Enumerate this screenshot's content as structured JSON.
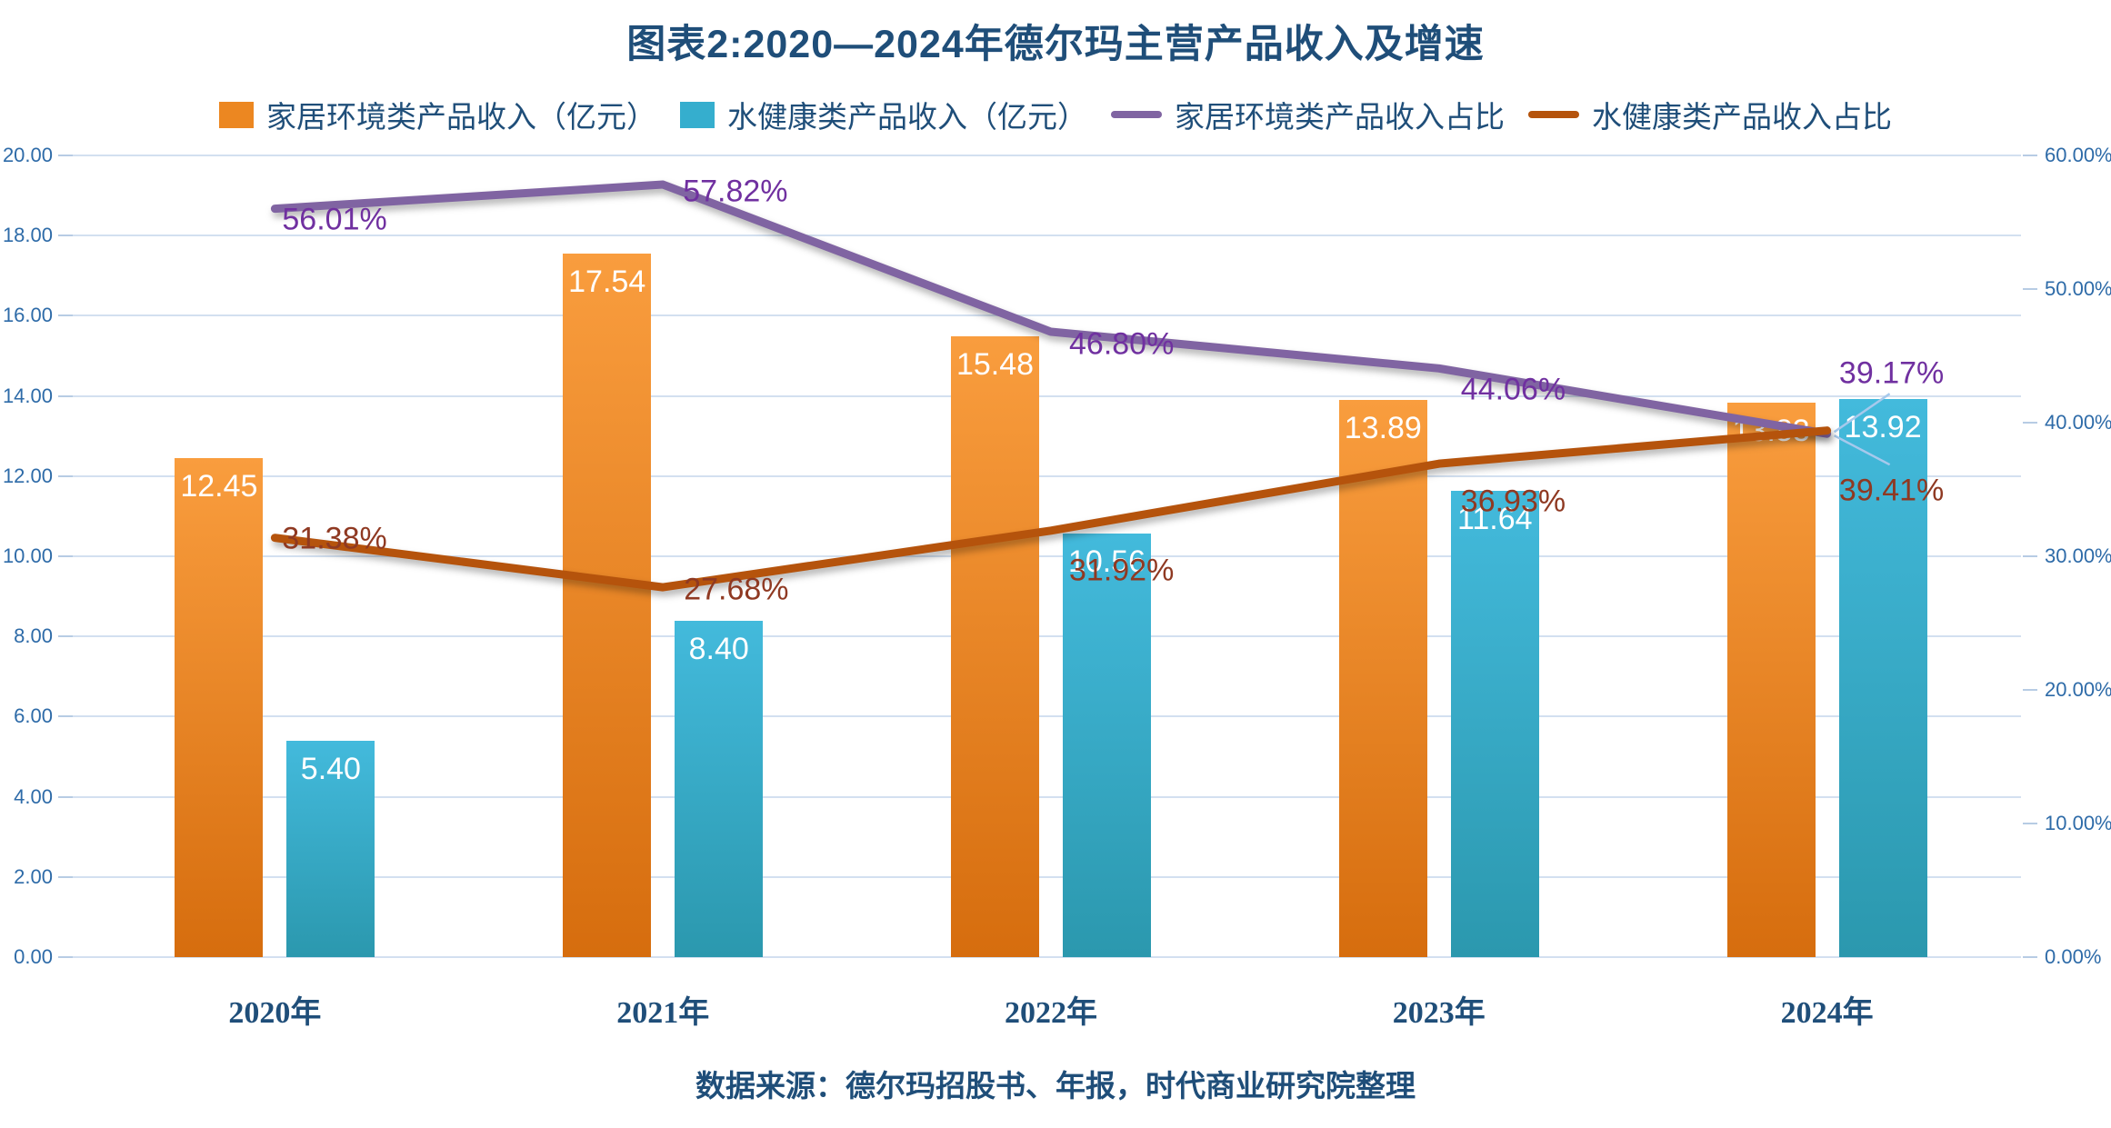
{
  "title": {
    "text": "图表2:2020—2024年德尔玛主营产品收入及增速"
  },
  "source": {
    "text": "数据来源：德尔玛招股书、年报，时代商业研究院整理"
  },
  "colors": {
    "title_text": "#1F4E79",
    "legend_text": "#1F4E79",
    "axis_tick_text": "#2E6BA8",
    "x_label_text": "#1F4E79",
    "source_text": "#1F4E79",
    "gridline": "#D3E0F0",
    "tick_mark": "#B7CCE4",
    "bar_value_text": "#FFFFFF",
    "leader_line": "#A6C9EC",
    "background": "#FFFFFF"
  },
  "legend": {
    "items": [
      {
        "label": "家居环境类产品收入（亿元）",
        "swatch": "square",
        "color": "#EC8721"
      },
      {
        "label": "水健康类产品收入（亿元）",
        "swatch": "square",
        "color": "#35AECE"
      },
      {
        "label": "家居环境类产品收入占比",
        "swatch": "line",
        "color": "#8064A2"
      },
      {
        "label": "水健康类产品收入占比",
        "swatch": "line",
        "color": "#B5530C"
      }
    ]
  },
  "chart_data": {
    "type": "bar+line combo",
    "categories": [
      "2020年",
      "2021年",
      "2022年",
      "2023年",
      "2024年"
    ],
    "series": [
      {
        "name": "家居环境类产品收入（亿元）",
        "type": "bar",
        "axis": "left",
        "color_top": "#F99D3E",
        "color_bottom": "#D66D0E",
        "values": [
          12.45,
          17.54,
          15.48,
          13.89,
          13.83
        ],
        "labels": [
          "12.45",
          "17.54",
          "15.48",
          "13.89",
          "13.83"
        ]
      },
      {
        "name": "水健康类产品收入（亿元）",
        "type": "bar",
        "axis": "left",
        "color_top": "#43BADC",
        "color_bottom": "#2B98AE",
        "values": [
          5.4,
          8.4,
          10.56,
          11.64,
          13.92
        ],
        "labels": [
          "5.40",
          "8.40",
          "10.56",
          "11.64",
          "13.92"
        ]
      },
      {
        "name": "家居环境类产品收入占比",
        "type": "line",
        "axis": "right",
        "color": "#8064A2",
        "label_color": "#7030A0",
        "values": [
          56.01,
          57.82,
          46.8,
          44.06,
          39.17
        ],
        "labels": [
          "56.01%",
          "57.82%",
          "46.80%",
          "44.06%",
          "39.17%"
        ]
      },
      {
        "name": "水健康类产品收入占比",
        "type": "line",
        "axis": "right",
        "color": "#B5530C",
        "label_color": "#8F3922",
        "values": [
          31.38,
          27.68,
          31.92,
          36.93,
          39.41
        ],
        "labels": [
          "31.38%",
          "27.68%",
          "31.92%",
          "36.93%",
          "39.41%"
        ]
      }
    ],
    "left_axis": {
      "min": 0,
      "max": 20,
      "step": 2,
      "tick_labels": [
        "0.00",
        "2.00",
        "4.00",
        "6.00",
        "8.00",
        "10.00",
        "12.00",
        "14.00",
        "16.00",
        "18.00",
        "20.00"
      ]
    },
    "right_axis": {
      "min": 0,
      "max": 60,
      "step": 10,
      "tick_labels": [
        "0.00%",
        "10.00%",
        "20.00%",
        "30.00%",
        "40.00%",
        "50.00%",
        "60.00%"
      ]
    },
    "grid": true,
    "legend_position": "top"
  }
}
